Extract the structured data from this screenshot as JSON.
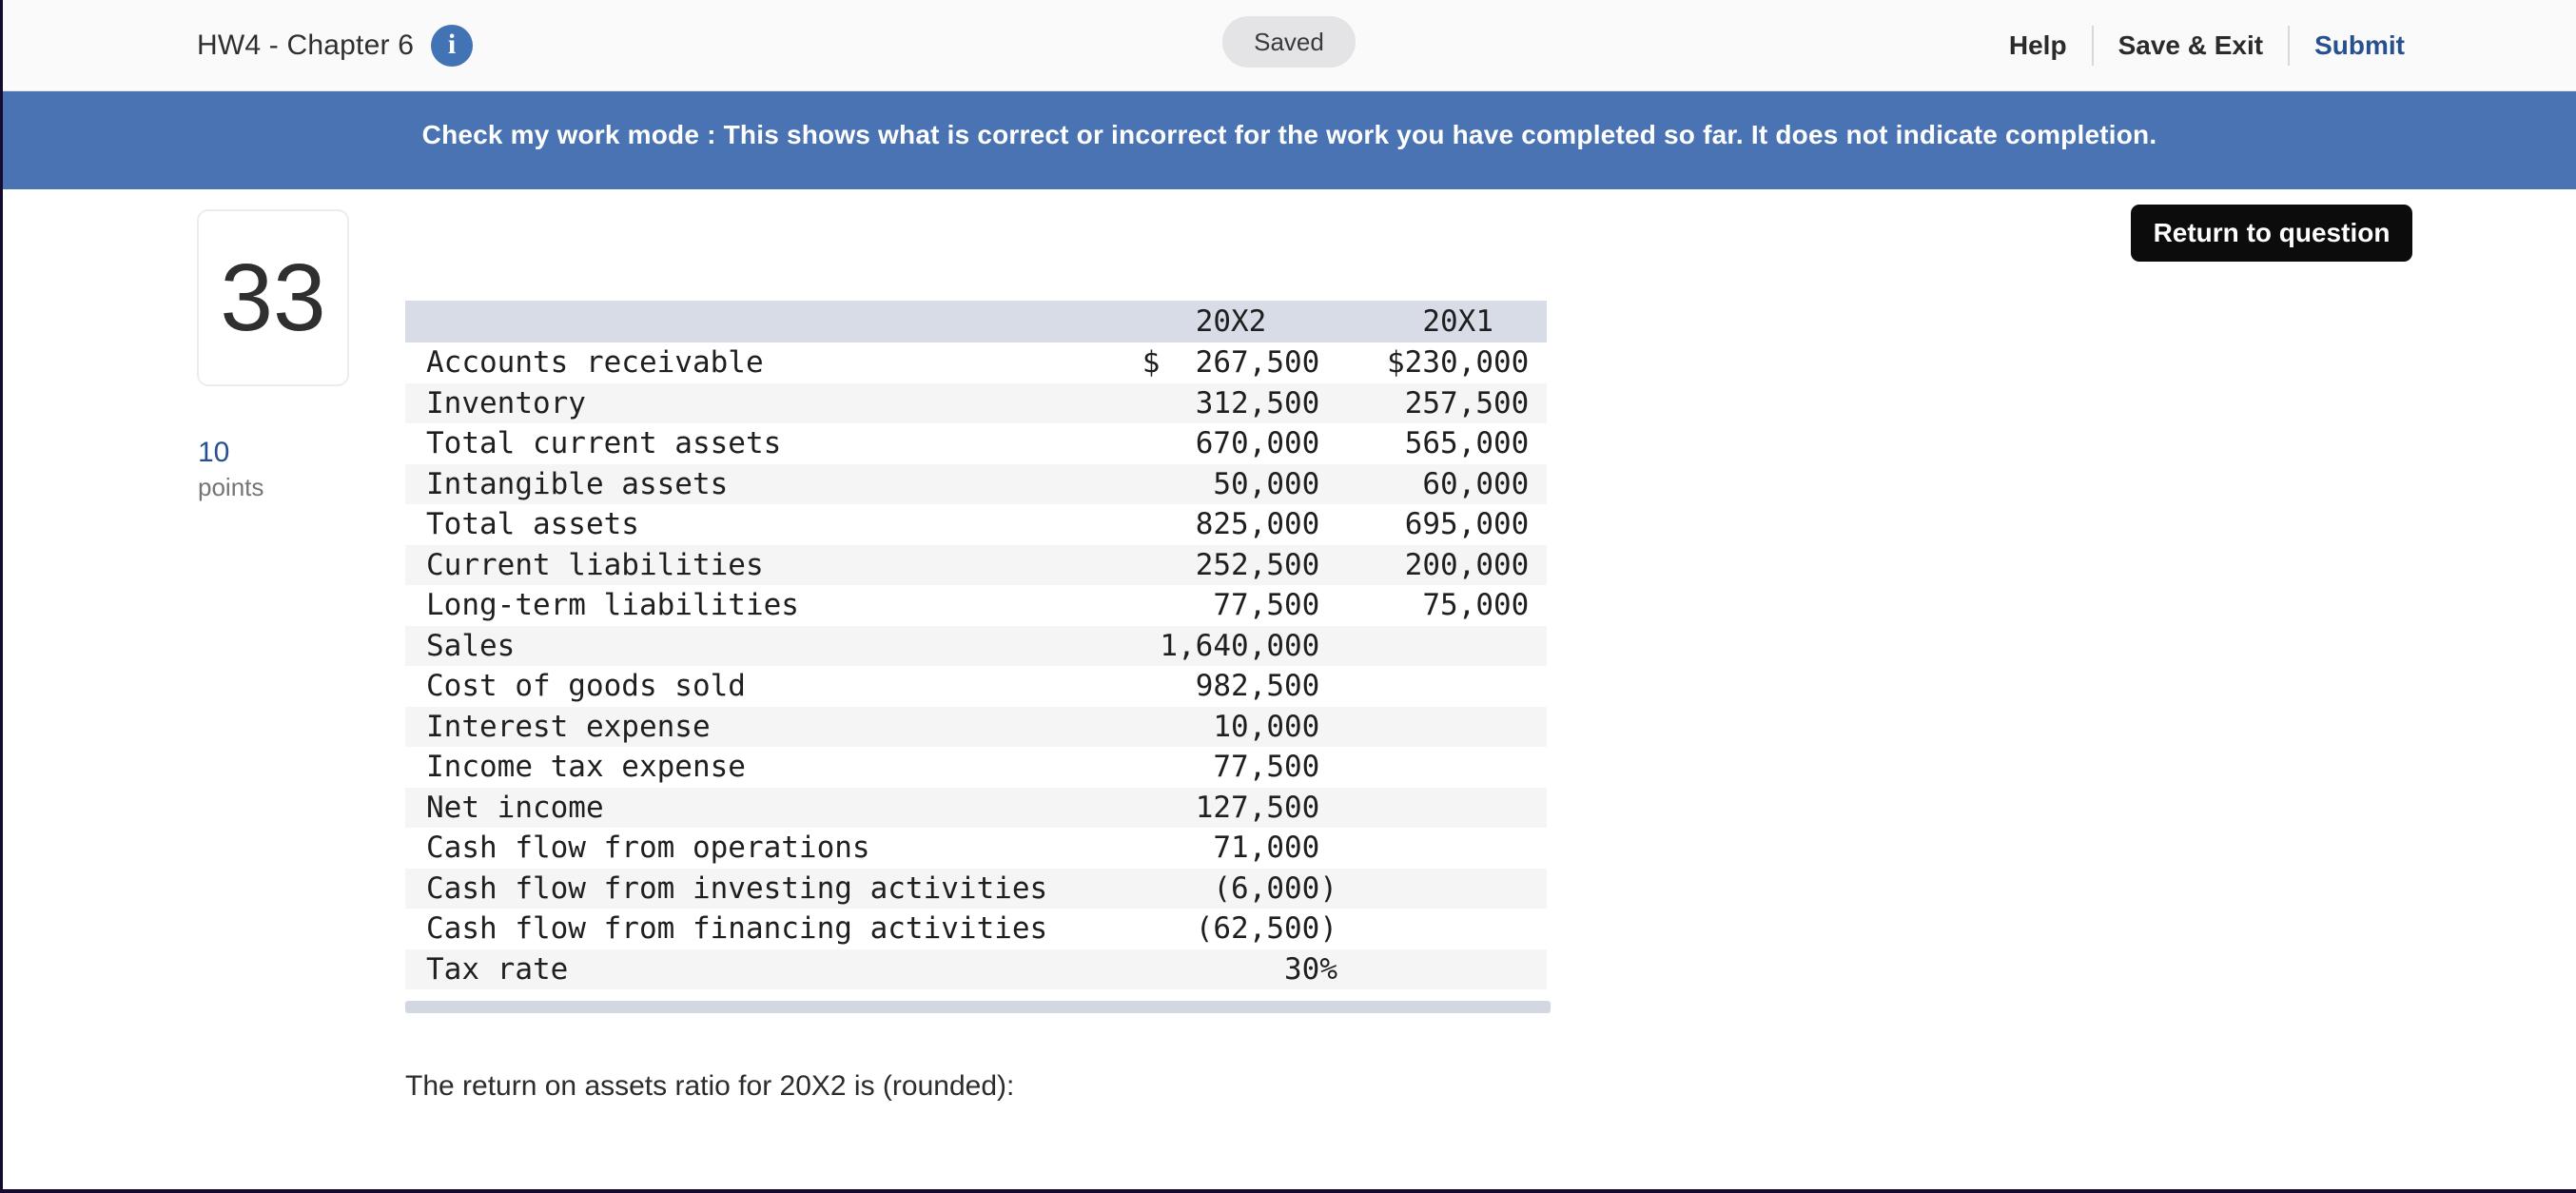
{
  "header": {
    "title": "HW4 - Chapter 6",
    "saved_label": "Saved",
    "help_label": "Help",
    "save_exit_label": "Save & Exit",
    "submit_label": "Submit",
    "info_icon": "info-icon"
  },
  "banner": {
    "text": "Check my work mode : This shows what is correct or incorrect for the work you have completed so far. It does not indicate completion."
  },
  "question_panel": {
    "number": "33",
    "points_value": "10",
    "points_label": "points",
    "return_button_label": "Return to question",
    "prompt": "The return on assets ratio for 20X2 is (rounded):"
  },
  "table": {
    "columns": [
      "",
      "20X2",
      "20X1"
    ],
    "header_display": {
      "col2": "20X2    ",
      "col3": "20X1   "
    },
    "rows": [
      {
        "label": "Accounts receivable",
        "y2": "$  267,500 ",
        "y1": "$230,000 "
      },
      {
        "label": "Inventory",
        "y2": "312,500 ",
        "y1": "257,500 "
      },
      {
        "label": "Total current assets",
        "y2": "670,000 ",
        "y1": "565,000 "
      },
      {
        "label": "Intangible assets",
        "y2": "50,000 ",
        "y1": "60,000 "
      },
      {
        "label": "Total assets",
        "y2": "825,000 ",
        "y1": "695,000 "
      },
      {
        "label": "Current liabilities",
        "y2": "252,500 ",
        "y1": "200,000 "
      },
      {
        "label": "Long-term liabilities",
        "y2": "77,500 ",
        "y1": "75,000 "
      },
      {
        "label": "Sales",
        "y2": "1,640,000 ",
        "y1": ""
      },
      {
        "label": "Cost of goods sold",
        "y2": "982,500 ",
        "y1": ""
      },
      {
        "label": "Interest expense",
        "y2": "10,000 ",
        "y1": ""
      },
      {
        "label": "Income tax expense",
        "y2": "77,500 ",
        "y1": ""
      },
      {
        "label": "Net income",
        "y2": "127,500 ",
        "y1": ""
      },
      {
        "label": "Cash flow from operations",
        "y2": "71,000 ",
        "y1": ""
      },
      {
        "label": "Cash flow from investing activities",
        "y2": "(6,000)",
        "y1": ""
      },
      {
        "label": "Cash flow from financing activities",
        "y2": "(62,500)",
        "y1": ""
      },
      {
        "label": "Tax rate",
        "y2": "30%",
        "y1": ""
      }
    ]
  },
  "colors": {
    "banner_blue": "#4a73b4",
    "submit_blue": "#27508e",
    "info_icon_blue": "#4273b4",
    "table_header_bg": "#d8dce7",
    "row_alt_bg": "#f5f5f5",
    "scrollbar": "#d2d7e2",
    "saved_pill_bg": "#e4e4e6",
    "button_black": "#0c0c0c",
    "window_edge": "#150b2e"
  }
}
